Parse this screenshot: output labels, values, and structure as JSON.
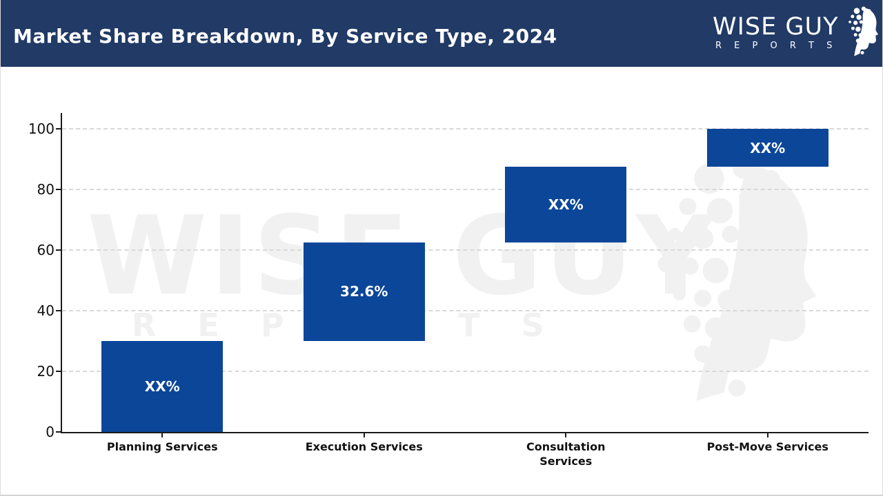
{
  "header": {
    "title": "Market Share Breakdown, By Service Type, 2024",
    "logo": {
      "line1": "WISE GUY",
      "line2": "R E P O R T S"
    }
  },
  "watermark": {
    "line1": "WISE GUY",
    "line2": "REPORTS"
  },
  "colors": {
    "header_bg": "#213a66",
    "bar": "#0b4699",
    "gridline": "#d8d8d8",
    "axis": "#1a1a1a",
    "watermark": "#f1f1f2",
    "bar_label": "#ffffff"
  },
  "chart_data": {
    "type": "waterfall",
    "title": "Market Share Breakdown, By Service Type, 2024",
    "categories": [
      "Planning Services",
      "Execution Services",
      "Consultation\nServices",
      "Post-Move Services"
    ],
    "segments": [
      {
        "category": "Planning Services",
        "start": 0,
        "end": 30,
        "label": "XX%"
      },
      {
        "category": "Execution Services",
        "start": 30,
        "end": 62.6,
        "label": "32.6%"
      },
      {
        "category": "Consultation Services",
        "start": 62.6,
        "end": 87.4,
        "label": "XX%"
      },
      {
        "category": "Post-Move Services",
        "start": 87.4,
        "end": 100,
        "label": "XX%"
      }
    ],
    "yticks": [
      0,
      20,
      40,
      60,
      80,
      100
    ],
    "ylim": [
      0,
      105
    ],
    "xlabel": "",
    "ylabel": "",
    "grid": "horizontal-dashed",
    "legend": "none",
    "bar_color": "#0b4699"
  }
}
